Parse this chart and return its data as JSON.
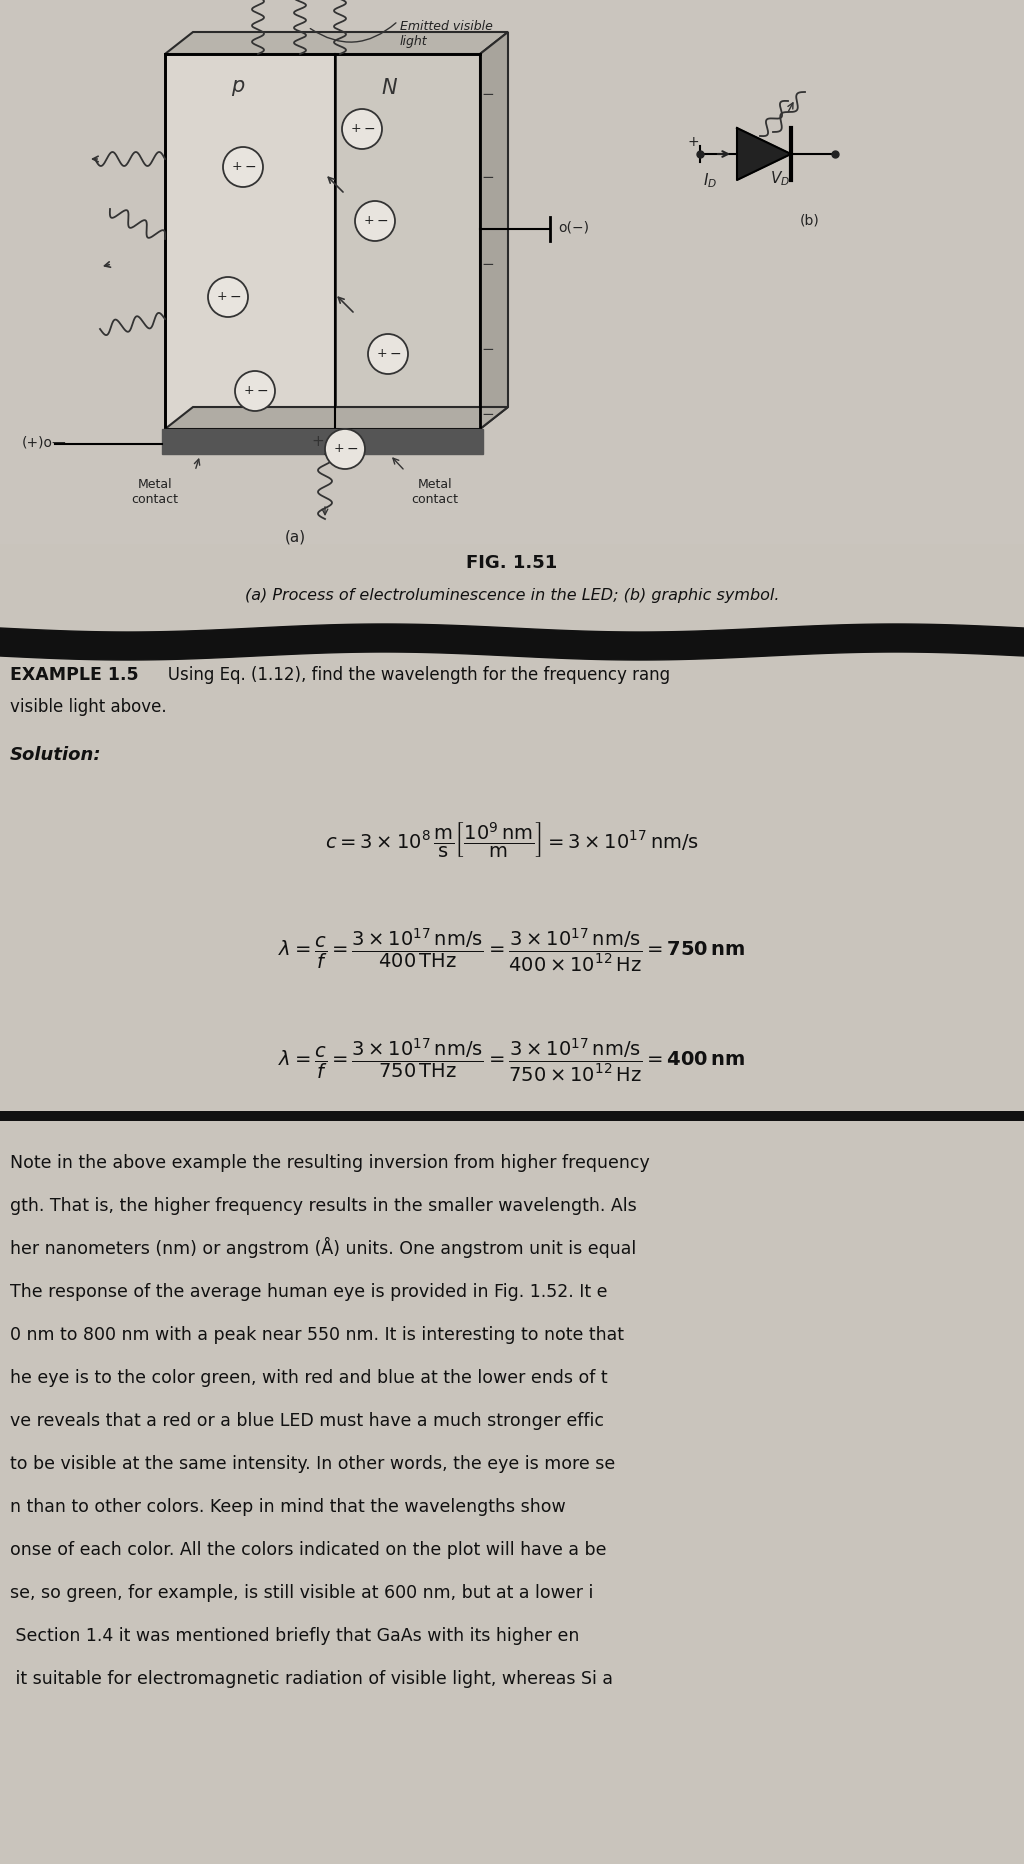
{
  "page_bg": "#c9c4bc",
  "diagram_bg": "#ccc7bf",
  "text_color": "#111111",
  "header_bg": "#111111",
  "fig_title": "FIG. 1.51",
  "fig_caption": "(a) Process of electroluminescence in the LED; (b) graphic symbol.",
  "example_bold": "EXAMPLE 1.5",
  "example_rest": "   Using Eq. (1.12), find the wavelength for the frequency rang",
  "example_line2": "visible light above.",
  "solution_label": "Solution:",
  "note_lines": [
    "Note in the above example the resulting inversion from higher frequency",
    "gth. That is, the higher frequency results in the smaller wavelength. Als",
    "her nanometers (nm) or angstrom (Å) units. One angstrom unit is equal",
    "The response of the average human eye is provided in Fig. 1.52. It e",
    "0 nm to 800 nm with a peak near 550 nm. It is interesting to note that",
    "he eye is to the color green, with red and blue at the lower ends of t",
    "ve reveals that a red or a blue LED must have a much stronger effic",
    "to be visible at the same intensity. In other words, the eye is more se",
    "n than to other colors. Keep in mind that the wavelengths show",
    "onse of each color. All the colors indicated on the plot will have a be",
    "se, so green, for example, is still visible at 600 nm, but at a lower i",
    " Section 1.4 it was mentioned briefly that GaAs with its higher en",
    " it suitable for electromagnetic radiation of visible light, whereas Si a"
  ]
}
